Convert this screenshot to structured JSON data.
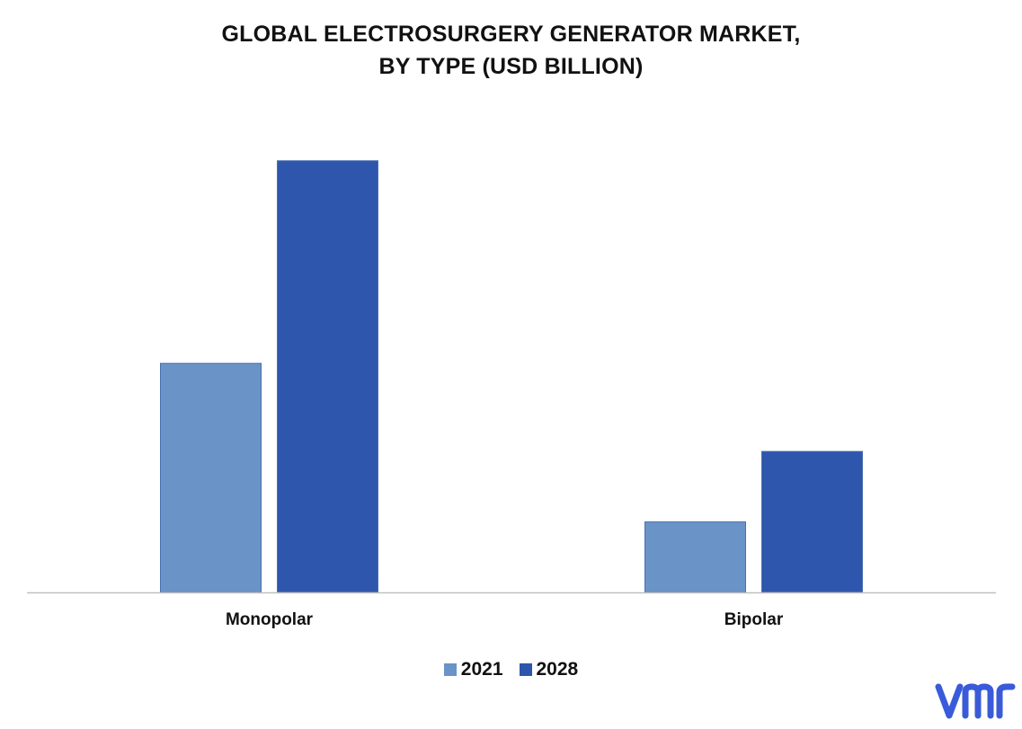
{
  "chart_data": {
    "type": "bar",
    "title_lines": [
      "GLOBAL ELECTROSURGERY  GENERATOR MARKET,",
      "BY TYPE (USD BILLION)"
    ],
    "categories": [
      "Monopolar",
      "Bipolar"
    ],
    "series": [
      {
        "name": "2021",
        "values": [
          2.6,
          0.8
        ],
        "color": "#6a93c7"
      },
      {
        "name": "2028",
        "values": [
          4.9,
          1.6
        ],
        "color": "#2e56ad"
      }
    ],
    "ylim": [
      0,
      5.5
    ],
    "grid": false,
    "legend_position": "bottom-center"
  },
  "logo": {
    "text": "vmr",
    "color": "#3a5bd9"
  }
}
